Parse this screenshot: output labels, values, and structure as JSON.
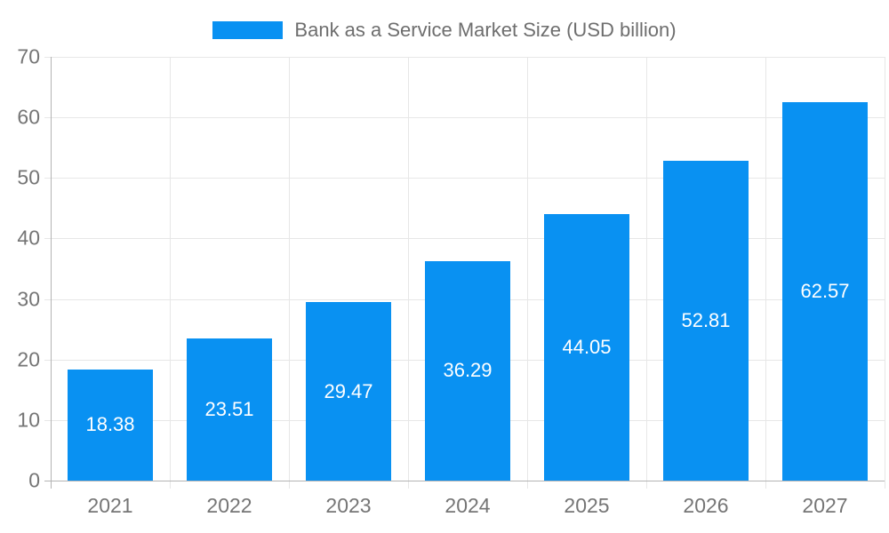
{
  "legend": {
    "label": "Bank as a Service Market Size (USD billion)",
    "swatch_color": "#0991f2"
  },
  "colors": {
    "bar": "#0991f2",
    "grid": "#e7e7e7",
    "axis_spine": "#b3b3b3",
    "axis_label": "#757575",
    "legend_text": "#6e6e6e",
    "value_label": "#ffffff",
    "background": "#ffffff"
  },
  "chart_data": {
    "type": "bar",
    "title": "Bank as a Service Market Size (USD billion)",
    "series_name": "Bank as a Service Market Size (USD billion)",
    "categories": [
      "2021",
      "2022",
      "2023",
      "2024",
      "2025",
      "2026",
      "2027"
    ],
    "values": [
      18.38,
      23.51,
      29.47,
      36.29,
      44.05,
      52.81,
      62.57
    ],
    "value_label_decimals": 2,
    "value_label_position": "inside-center",
    "xlabel": "",
    "ylabel": "",
    "ylim": [
      0,
      70
    ],
    "yticks": [
      0,
      10,
      20,
      30,
      40,
      50,
      60,
      70
    ],
    "grid": true,
    "legend_position": "top-center"
  }
}
